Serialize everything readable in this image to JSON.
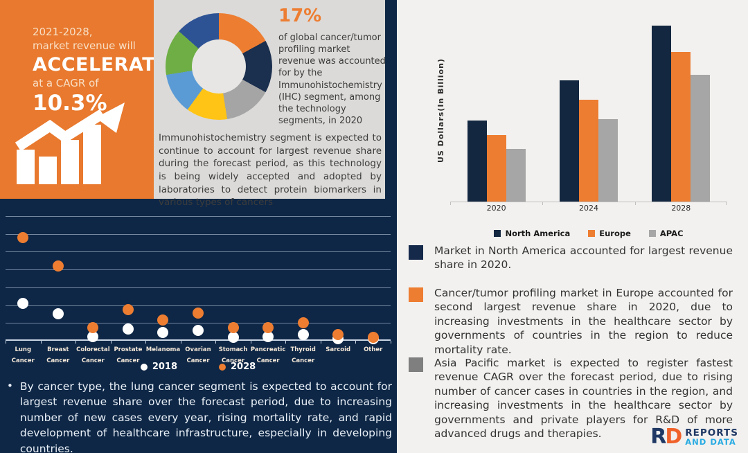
{
  "promo": {
    "line1": "2021-2028,",
    "line2": "market revenue will",
    "emphasis": "ACCELERATE",
    "line3": "at a CAGR of",
    "cagr": "10.3%"
  },
  "ihc": {
    "stat_value": "17%",
    "stat_text": "of global cancer/tumor profiling market revenue was accounted for by the Immunohistochemistry (IHC) segment, among the technology segments, in 2020",
    "paragraph": "Immunohistochemistry segment is expected to continue to account for largest revenue share during the forecast period, as this technology is being widely accepted and adopted by laboratories to detect protein biomarkers in various types of cancers"
  },
  "regional": {
    "bullets": [
      {
        "color": "#15294B",
        "text": "Market in North America accounted for largest revenue share in 2020."
      },
      {
        "color": "#ED7D31",
        "text": "Cancer/tumor profiling market in Europe accounted for second largest revenue share in 2020, due to increasing investments in the healthcare sector by governments of countries in the region to reduce mortality rate."
      },
      {
        "color": "#7F7F7F",
        "text": "Asia Pacific market is expected to register fastest revenue CAGR over the forecast period, due to rising number of cancer cases in countries in the region, and increasing investments in the healthcare sector by governments and private players for R&D of more advanced drugs and therapies."
      }
    ]
  },
  "cancer_type_bullet": "By cancer type, the lung cancer segment is expected to account for largest revenue share over the forecast period, due to increasing number of new cases every year, rising mortality rate, and rapid development of healthcare infrastructure, especially in developing countries.",
  "logo": {
    "mark_r": "R",
    "mark_d": "D",
    "line1": "REPORTS",
    "line2": "AND DATA"
  },
  "chart_data": [
    {
      "id": "technology-donut",
      "type": "pie",
      "donut": true,
      "annotation": "17% = Immunohistochemistry (IHC) segment share of technology segments, 2020",
      "segments": [
        {
          "value": 17,
          "color": "#ED7D31"
        },
        {
          "value": 16,
          "color": "#1B2F4E"
        },
        {
          "value": 14.5,
          "color": "#A5A5A5"
        },
        {
          "value": 12.5,
          "color": "#FFC415"
        },
        {
          "value": 12.5,
          "color": "#5B9BD5"
        },
        {
          "value": 14,
          "color": "#6FAE45"
        },
        {
          "value": 13.5,
          "color": "#2E5395"
        }
      ]
    },
    {
      "id": "regional-revenue-bars",
      "type": "bar",
      "title": "",
      "ylabel": "US Dollars(In Billion)",
      "categories": [
        "2020",
        "2024",
        "2028"
      ],
      "series": [
        {
          "name": "North America",
          "color": "#132740",
          "values": [
            4.6,
            6.9,
            10.0
          ]
        },
        {
          "name": "Europe",
          "color": "#ED7D31",
          "values": [
            3.8,
            5.8,
            8.5
          ]
        },
        {
          "name": "APAC",
          "color": "#A6A6A6",
          "values": [
            3.0,
            4.7,
            7.2
          ]
        }
      ],
      "ylim": [
        0,
        10.4
      ],
      "grid": false,
      "legend_position": "bottom"
    },
    {
      "id": "cancer-type-scatter",
      "type": "scatter",
      "categories": [
        "Lung Cancer",
        "Breast Cancer",
        "Colorectal Cancer",
        "Prostate Cancer",
        "Melanoma",
        "Ovarian Cancer",
        "Stomach Cancer",
        "Pancreatic Cancer",
        "Thyroid Cancer",
        "Sarcoid",
        "Other"
      ],
      "series": [
        {
          "name": "2018",
          "color": "#FFFFFF",
          "values": [
            2.1,
            1.5,
            0.25,
            0.65,
            0.45,
            0.6,
            0.2,
            0.25,
            0.35,
            0.1,
            0.1
          ]
        },
        {
          "name": "2028",
          "color": "#ED7D31",
          "values": [
            5.8,
            4.2,
            0.75,
            1.75,
            1.15,
            1.55,
            0.75,
            0.75,
            1.0,
            0.35,
            0.2
          ]
        }
      ],
      "ylim": [
        0,
        7.5
      ],
      "gridlines": 7,
      "grid": true,
      "legend_position": "bottom"
    }
  ]
}
